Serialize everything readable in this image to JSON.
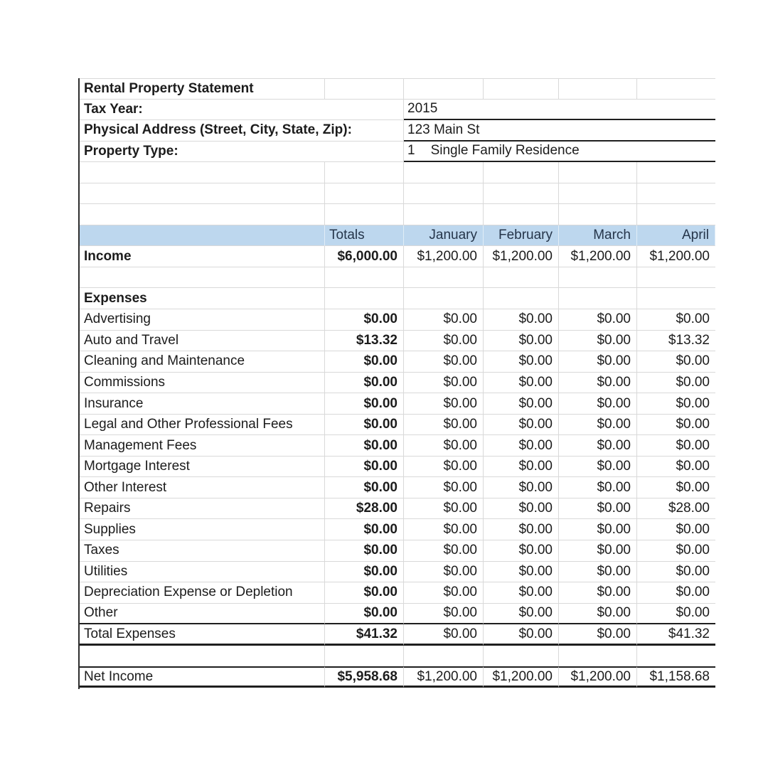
{
  "sheet": {
    "title": "Rental Property Statement",
    "info": [
      {
        "label": "Tax Year:",
        "value": "2015"
      },
      {
        "label": "Physical Address (Street, City, State, Zip):",
        "value": "123 Main St"
      },
      {
        "label": "Property Type:",
        "code": "1",
        "value": "Single Family Residence"
      }
    ],
    "header": {
      "totals": "Totals",
      "months": [
        "January",
        "February",
        "March",
        "April"
      ]
    },
    "income": {
      "label": "Income",
      "total": "$6,000.00",
      "months": [
        "$1,200.00",
        "$1,200.00",
        "$1,200.00",
        "$1,200.00"
      ]
    },
    "expenses_title": "Expenses",
    "expenses": [
      {
        "label": "Advertising",
        "total": "$0.00",
        "months": [
          "$0.00",
          "$0.00",
          "$0.00",
          "$0.00"
        ]
      },
      {
        "label": "Auto and Travel",
        "total": "$13.32",
        "months": [
          "$0.00",
          "$0.00",
          "$0.00",
          "$13.32"
        ]
      },
      {
        "label": "Cleaning and Maintenance",
        "total": "$0.00",
        "months": [
          "$0.00",
          "$0.00",
          "$0.00",
          "$0.00"
        ]
      },
      {
        "label": "Commissions",
        "total": "$0.00",
        "months": [
          "$0.00",
          "$0.00",
          "$0.00",
          "$0.00"
        ]
      },
      {
        "label": "Insurance",
        "total": "$0.00",
        "months": [
          "$0.00",
          "$0.00",
          "$0.00",
          "$0.00"
        ]
      },
      {
        "label": "Legal and Other Professional Fees",
        "total": "$0.00",
        "months": [
          "$0.00",
          "$0.00",
          "$0.00",
          "$0.00"
        ]
      },
      {
        "label": "Management Fees",
        "total": "$0.00",
        "months": [
          "$0.00",
          "$0.00",
          "$0.00",
          "$0.00"
        ]
      },
      {
        "label": "Mortgage Interest",
        "total": "$0.00",
        "months": [
          "$0.00",
          "$0.00",
          "$0.00",
          "$0.00"
        ]
      },
      {
        "label": "Other Interest",
        "total": "$0.00",
        "months": [
          "$0.00",
          "$0.00",
          "$0.00",
          "$0.00"
        ]
      },
      {
        "label": "Repairs",
        "total": "$28.00",
        "months": [
          "$0.00",
          "$0.00",
          "$0.00",
          "$28.00"
        ]
      },
      {
        "label": "Supplies",
        "total": "$0.00",
        "months": [
          "$0.00",
          "$0.00",
          "$0.00",
          "$0.00"
        ]
      },
      {
        "label": "Taxes",
        "total": "$0.00",
        "months": [
          "$0.00",
          "$0.00",
          "$0.00",
          "$0.00"
        ]
      },
      {
        "label": "Utilities",
        "total": "$0.00",
        "months": [
          "$0.00",
          "$0.00",
          "$0.00",
          "$0.00"
        ]
      },
      {
        "label": "Depreciation Expense or Depletion",
        "total": "$0.00",
        "months": [
          "$0.00",
          "$0.00",
          "$0.00",
          "$0.00"
        ]
      },
      {
        "label": "Other",
        "total": "$0.00",
        "months": [
          "$0.00",
          "$0.00",
          "$0.00",
          "$0.00"
        ]
      }
    ],
    "total_expenses": {
      "label": "Total Expenses",
      "total": "$41.32",
      "months": [
        "$0.00",
        "$0.00",
        "$0.00",
        "$41.32"
      ]
    },
    "net_income": {
      "label": "Net Income",
      "total": "$5,958.68",
      "months": [
        "$1,200.00",
        "$1,200.00",
        "$1,200.00",
        "$1,158.68"
      ]
    }
  },
  "colors": {
    "header_bg": "#bdd7ee",
    "gridline": "#d9d9d9",
    "border_dark": "#1f1f1f",
    "text": "#1c1c1c"
  }
}
